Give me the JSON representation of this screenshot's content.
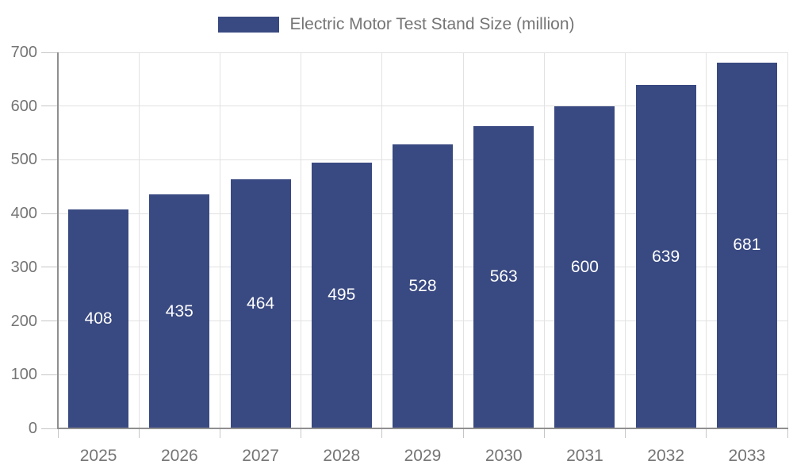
{
  "legend": {
    "label": "Electric Motor Test Stand Size (million)"
  },
  "chart_data": {
    "type": "bar",
    "title": "Electric Motor Test Stand Size (million)",
    "series_name": "Electric Motor Test Stand Size (million)",
    "categories": [
      "2025",
      "2026",
      "2027",
      "2028",
      "2029",
      "2030",
      "2031",
      "2032",
      "2033"
    ],
    "values": [
      408,
      435,
      464,
      495,
      528,
      563,
      600,
      639,
      681
    ],
    "xlabel": "",
    "ylabel": "",
    "ylim": [
      0,
      700
    ],
    "yticks": [
      0,
      100,
      200,
      300,
      400,
      500,
      600,
      700
    ],
    "grid": true,
    "legend_position": "top-center",
    "value_labels": "inside-center",
    "colors": {
      "bar": "#394981",
      "value_label": "#ffffff",
      "tick_label": "#757575",
      "gridline": "#e2e2e2",
      "axis_line": "#8f8f8f",
      "background": "#ffffff"
    }
  }
}
